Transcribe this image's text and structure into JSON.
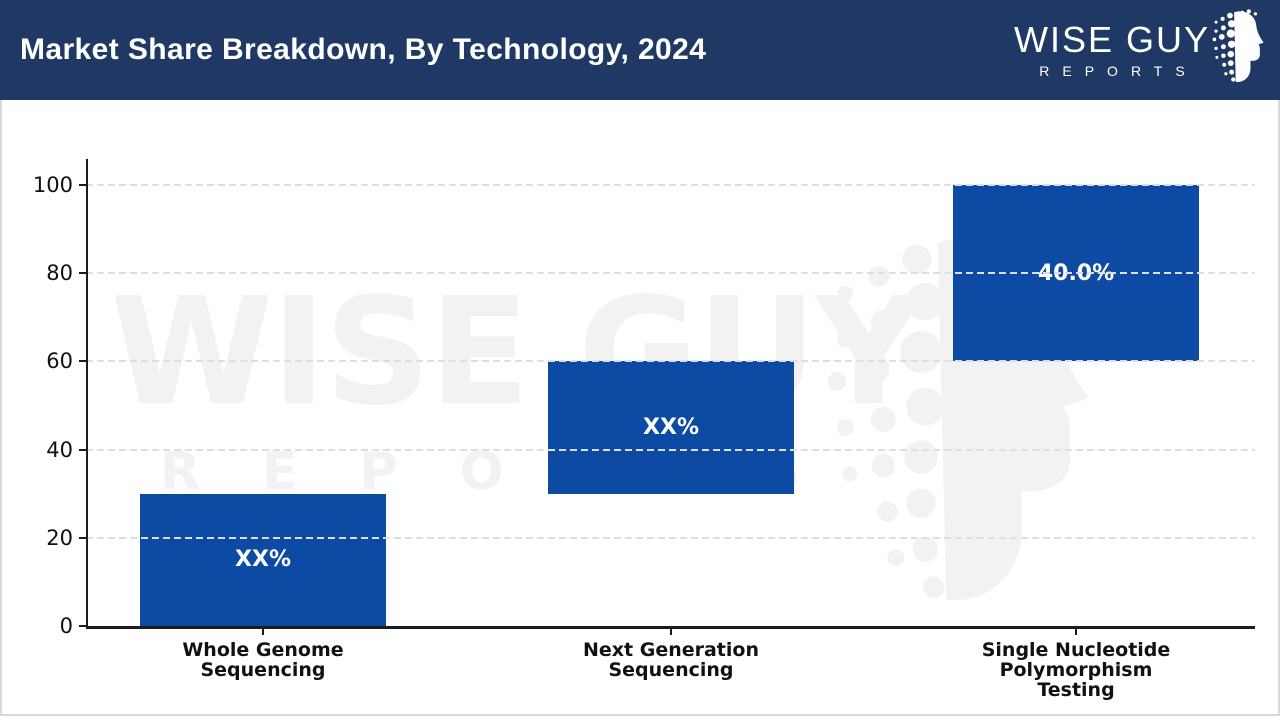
{
  "header": {
    "title": "Market Share Breakdown, By Technology, 2024",
    "bg_color": "#203864",
    "text_color": "#ffffff",
    "brand": {
      "name": "WISE GUY",
      "subtitle": "REPORTS"
    }
  },
  "watermark": {
    "name": "WISE GUY",
    "subtitle": "REPORTS"
  },
  "chart_data": {
    "type": "bar",
    "subtype": "floating-segment bars (waterfall-style market share)",
    "title": "Market Share Breakdown, By Technology, 2024",
    "categories": [
      "Whole Genome Sequencing",
      "Next Generation Sequencing",
      "Single Nucleotide Polymorphism Testing"
    ],
    "category_label_lines": [
      [
        "Whole Genome",
        "Sequencing"
      ],
      [
        "Next Generation",
        "Sequencing"
      ],
      [
        "Single Nucleotide",
        "Polymorphism",
        "Testing"
      ]
    ],
    "bars": [
      {
        "category": "Whole Genome Sequencing",
        "start": 0,
        "end": 30,
        "label": "XX%"
      },
      {
        "category": "Next Generation Sequencing",
        "start": 30,
        "end": 60,
        "label": "XX%"
      },
      {
        "category": "Single Nucleotide Polymorphism Testing",
        "start": 60,
        "end": 100,
        "label": "40.0%"
      }
    ],
    "yticks": [
      0,
      20,
      40,
      60,
      80,
      100
    ],
    "ylim": [
      0,
      106
    ],
    "xlabel": "",
    "ylabel": "",
    "grid": "horizontal-dashed",
    "legend": "none",
    "bar_color": "#0d4aa3",
    "bar_label_color": "#ffffff",
    "axis_color": "#1c1c1c",
    "gridline_color": "#dedede"
  }
}
